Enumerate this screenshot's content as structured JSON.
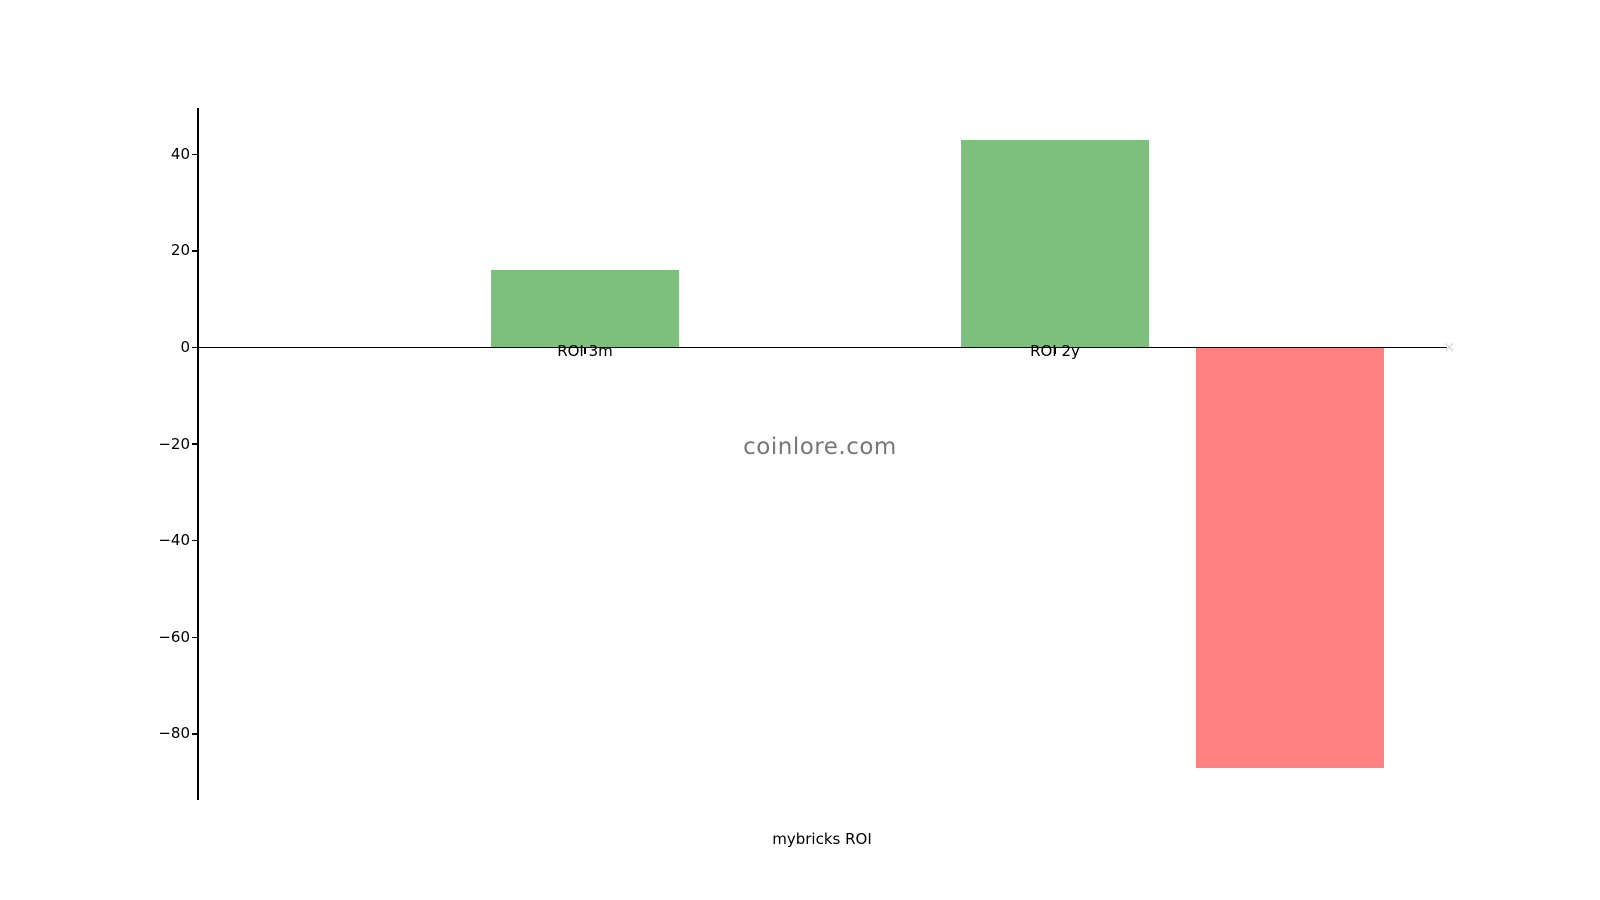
{
  "page": {
    "background_color": "#ffffff"
  },
  "watermark": {
    "text": "coinlore.com",
    "color": "#777777"
  },
  "chart_data": {
    "type": "bar",
    "title": "mybricks ROI",
    "title_position": "bottom",
    "xlabel": "",
    "ylabel": "",
    "categories": [
      "ROI 3m",
      "",
      "ROI 2y",
      ""
    ],
    "values": [
      16,
      0,
      43,
      -87
    ],
    "yticks": [
      40,
      20,
      0,
      -20,
      -40,
      -60,
      -80
    ],
    "ytick_labels": [
      "40",
      "20",
      "0",
      "−20",
      "−40",
      "−60",
      "−80"
    ],
    "ylim": [
      -94,
      50
    ],
    "grid": false,
    "legend": null,
    "positive_color": "#7dbf7d",
    "negative_color": "#ff8080",
    "axis_color": "#000000",
    "tick_label_color": "#000000",
    "zero_baseline": true
  }
}
